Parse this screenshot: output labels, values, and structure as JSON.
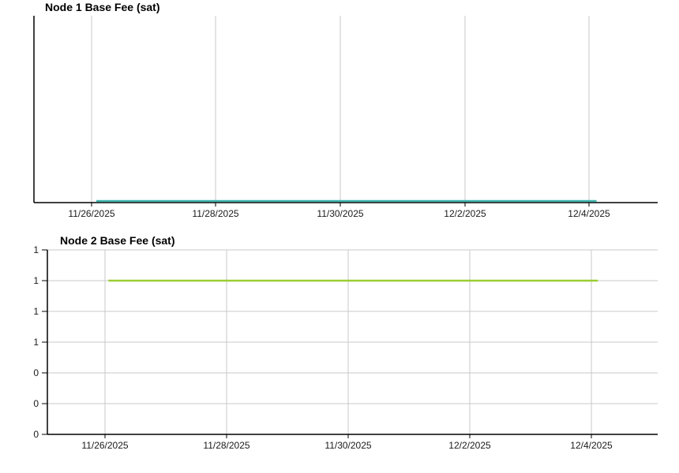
{
  "page": {
    "background_color": "#ffffff"
  },
  "chart_data": [
    {
      "type": "line",
      "title": "Node 1 Base Fee (sat)",
      "xlabel": "",
      "ylabel": "",
      "x_tick_labels": [
        "11/26/2025",
        "11/28/2025",
        "11/30/2025",
        "12/2/2025",
        "12/4/2025"
      ],
      "y_tick_labels": [],
      "grid": "vertical-only",
      "legend_position": "none",
      "series": [
        {
          "name": "Node 1 Base Fee",
          "color": "#3db3ab",
          "constant_value": 0,
          "x_span_frac": [
            0.1,
            0.902
          ]
        }
      ]
    },
    {
      "type": "line",
      "title": "Node 2 Base Fee (sat)",
      "xlabel": "",
      "ylabel": "",
      "x_tick_labels": [
        "11/26/2025",
        "11/28/2025",
        "11/30/2025",
        "12/2/2025",
        "12/4/2025"
      ],
      "y_tick_labels": [
        "1",
        "1",
        "1",
        "1",
        "0",
        "0",
        "0"
      ],
      "y_tick_values_est": [
        1.2,
        1.0,
        0.8,
        0.6,
        0.4,
        0.2,
        0
      ],
      "ylim": [
        0,
        1.2
      ],
      "grid": "both",
      "legend_position": "none",
      "series": [
        {
          "name": "Node 2 Base Fee",
          "color": "#9acd32",
          "constant_value": 1,
          "x_span_frac": [
            0.1,
            0.902
          ]
        }
      ]
    }
  ],
  "style": {
    "grid_color": "#c8c8c8",
    "axis_color": "#000000",
    "tick_label_color": "#1a1a1a"
  }
}
